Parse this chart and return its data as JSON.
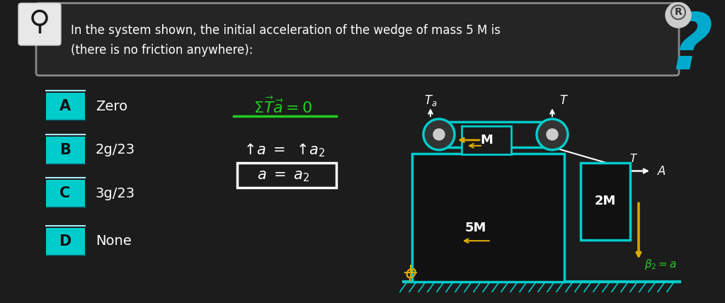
{
  "bg_color": "#1c1c1c",
  "question_text_line1": "In the system shown, the initial acceleration of the wedge of mass 5 M is",
  "question_text_line2": "(there is no friction anywhere):",
  "options": [
    "Zero",
    "2g/23",
    "3g/23",
    "None"
  ],
  "option_labels": [
    "A",
    "B",
    "C",
    "D"
  ],
  "option_label_color": "#00cccc",
  "option_text_color": "#ffffff",
  "question_text_color": "#ffffff",
  "q_label_bg": "#e8e8e8",
  "diagram_color": "#00cccc",
  "math_green": "#22cc22",
  "math_white": "#ffffff",
  "arrow_orange": "#ddaa00",
  "ground_color": "#00cccc",
  "qmark_color": "#00aacc"
}
